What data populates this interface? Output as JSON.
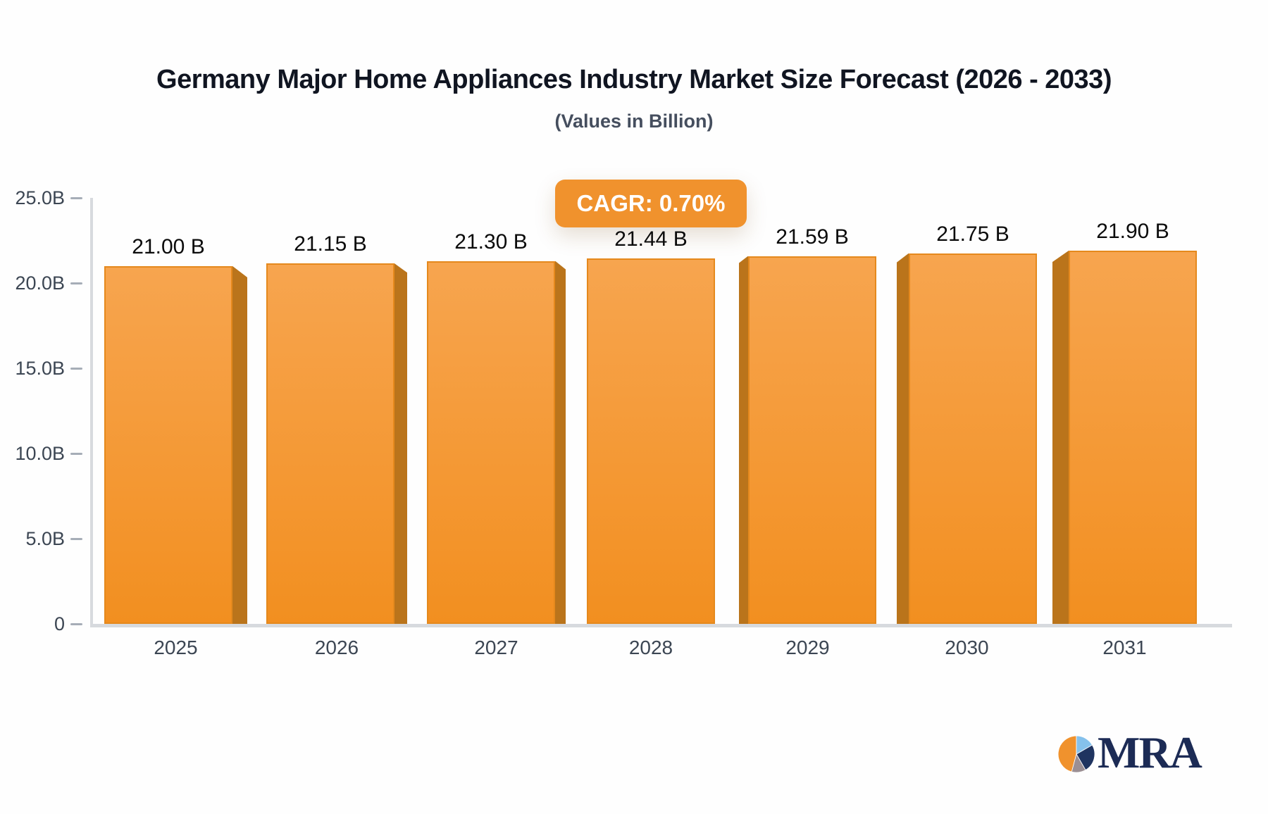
{
  "header": {
    "title": "Germany Major Home Appliances Industry Market Size Forecast (2026 - 2033)",
    "subtitle": "(Values in Billion)"
  },
  "badge": {
    "label": "CAGR: 0.70%"
  },
  "chart_data": {
    "type": "bar",
    "title": "Germany Major Home Appliances Industry Market Size Forecast (2026 - 2033)",
    "subtitle": "(Values in Billion)",
    "categories": [
      "2025",
      "2026",
      "2027",
      "2028",
      "2029",
      "2030",
      "2031"
    ],
    "values": [
      21.0,
      21.15,
      21.3,
      21.44,
      21.59,
      21.75,
      21.9
    ],
    "bar_labels": [
      "21.00 B",
      "21.15 B",
      "21.30 B",
      "21.44 B",
      "21.59 B",
      "21.75 B",
      "21.90 B"
    ],
    "y_ticks": [
      {
        "label": "25.0B",
        "value": 25
      },
      {
        "label": "20.0B",
        "value": 20
      },
      {
        "label": "15.0B",
        "value": 15
      },
      {
        "label": "10.0B",
        "value": 10
      },
      {
        "label": "5.0B",
        "value": 5
      },
      {
        "label": "0",
        "value": 0
      }
    ],
    "ylim": [
      0,
      25
    ],
    "xlabel": "",
    "ylabel": "",
    "grid": false,
    "legend": "none",
    "annotation": "CAGR: 0.70%",
    "colors": {
      "bar_top": "#F7A54F",
      "bar_bottom": "#F28F20",
      "bar_side": "#BA741B",
      "bar_border": "#E5891D",
      "badge": "#F0922D",
      "axis_line": "#D7DADE",
      "tick_dash": "#A6ADB7",
      "title_text": "#101521",
      "tick_text": "#3C4653"
    }
  },
  "logo": {
    "text": "MRA",
    "pie_colors": {
      "orange": "#F0922D",
      "light_blue": "#85C1EC",
      "navy": "#1F3460",
      "gray": "#9B8F94"
    }
  }
}
